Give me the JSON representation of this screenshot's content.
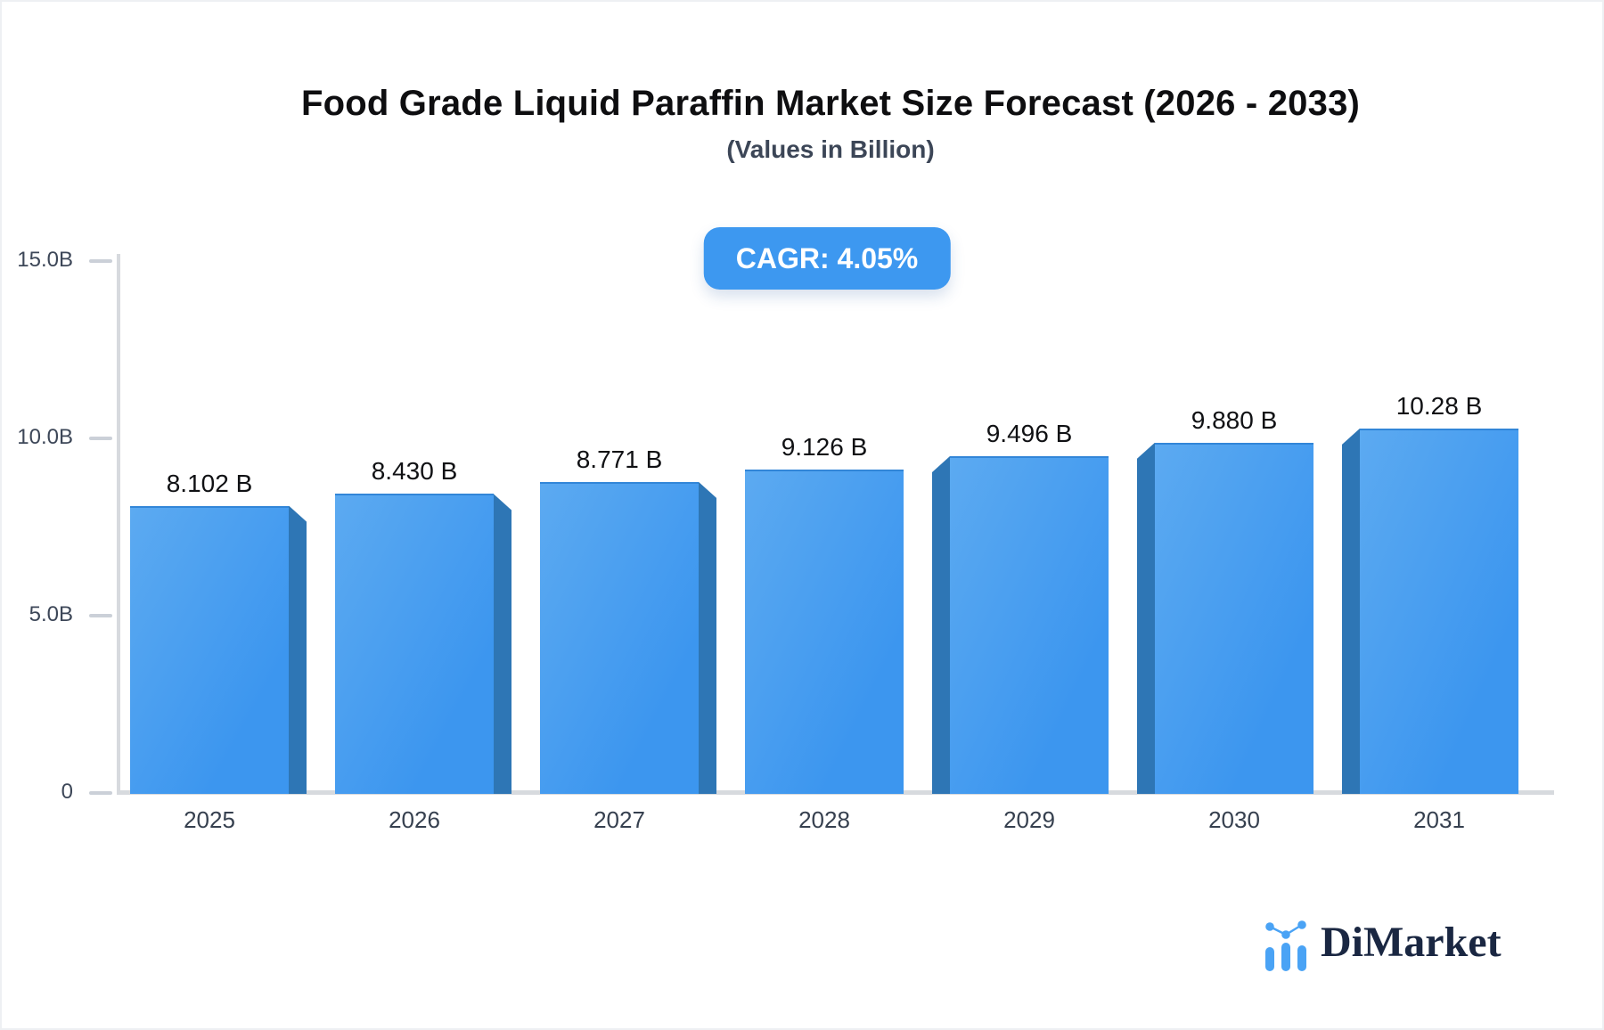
{
  "title": "Food Grade Liquid Paraffin Market Size Forecast (2026 - 2033)",
  "subtitle": "(Values in Billion)",
  "badge": {
    "label": "CAGR: 4.05%"
  },
  "chart_data": {
    "type": "bar",
    "categories": [
      "2025",
      "2026",
      "2027",
      "2028",
      "2029",
      "2030",
      "2031"
    ],
    "values": [
      8.102,
      8.43,
      8.771,
      9.126,
      9.496,
      9.88,
      10.28
    ],
    "value_labels": [
      "8.102 B",
      "8.430 B",
      "8.771 B",
      "9.126 B",
      "9.496 B",
      "9.880 B",
      "10.28 B"
    ],
    "title": "Food Grade Liquid Paraffin Market Size Forecast (2026 - 2033)",
    "subtitle": "(Values in Billion)",
    "xlabel": "",
    "ylabel": "",
    "ylim": [
      0,
      15
    ],
    "yticks": [
      {
        "value": 0,
        "label": "0"
      },
      {
        "value": 5,
        "label": "5.0B"
      },
      {
        "value": 10,
        "label": "10.0B"
      },
      {
        "value": 15,
        "label": "15.0B"
      }
    ],
    "grid": false,
    "legend": null,
    "annotation": "CAGR: 4.05%"
  },
  "colors": {
    "badge_blue": "#3d98f0",
    "bar_top": "#5caaf1",
    "bar_bottom": "#3c96ef",
    "bar_edge": "#3286d8",
    "bar_side": "#2e76b5",
    "axis_gray": "#d7dade",
    "tick_gray": "#cbd0d8",
    "label_dark": "#3d4758",
    "logo_blue": "#4aa3f5",
    "logo_navy": "#1a2742"
  },
  "logo": {
    "text": "DiMarket",
    "icon": "mini-bar-chart-icon"
  }
}
